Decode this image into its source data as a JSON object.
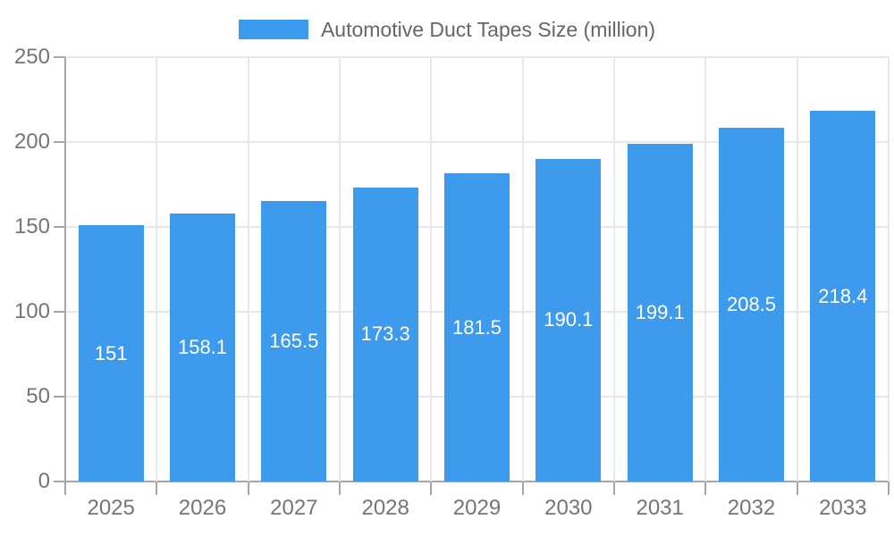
{
  "legend": {
    "label": "Automotive Duct Tapes Size (million)"
  },
  "chart_data": {
    "type": "bar",
    "title": "Automotive Duct Tapes Size (million)",
    "categories": [
      "2025",
      "2026",
      "2027",
      "2028",
      "2029",
      "2030",
      "2031",
      "2032",
      "2033"
    ],
    "values": [
      151,
      158.1,
      165.5,
      173.3,
      181.5,
      190.1,
      199.1,
      208.5,
      218.4
    ],
    "xlabel": "",
    "ylabel": "",
    "ylim": [
      0,
      250
    ],
    "yticks": [
      0,
      50,
      100,
      150,
      200,
      250
    ],
    "grid": true,
    "legend_position": "top",
    "colors": {
      "bar": "#3D9AED",
      "bar_value_text": "#ffffff",
      "legend_text": "#666666",
      "axis_text": "#757575",
      "axis_line": "#a6a6a6",
      "gridline": "#e8e8e8"
    }
  }
}
